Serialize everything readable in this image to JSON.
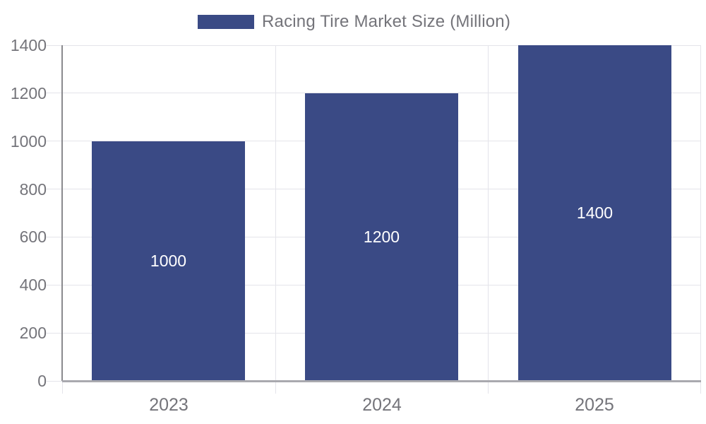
{
  "chart_data": {
    "type": "bar",
    "title": "Racing Tire Market Size (Million)",
    "series_name": "Racing Tire Market Size (Million)",
    "categories": [
      "2023",
      "2024",
      "2025"
    ],
    "values": [
      1000,
      1200,
      1400
    ],
    "value_labels": [
      "1000",
      "1200",
      "1400"
    ],
    "xlabel": "",
    "ylabel": "",
    "ylim": [
      0,
      1400
    ],
    "y_ticks": [
      0,
      200,
      400,
      600,
      800,
      1000,
      1200,
      1400
    ],
    "grid": true,
    "legend_position": "top-center",
    "bar_value_label_position": "center-inside"
  },
  "colors": {
    "bar": "#3A4A85",
    "grid": "#E4E4EA",
    "axis_y": "#8A8A8E",
    "axis_x": "#A9A9AF",
    "tick_text": "#74747A",
    "value_label_text": "#FFFFFF",
    "background": "#FFFFFF"
  }
}
